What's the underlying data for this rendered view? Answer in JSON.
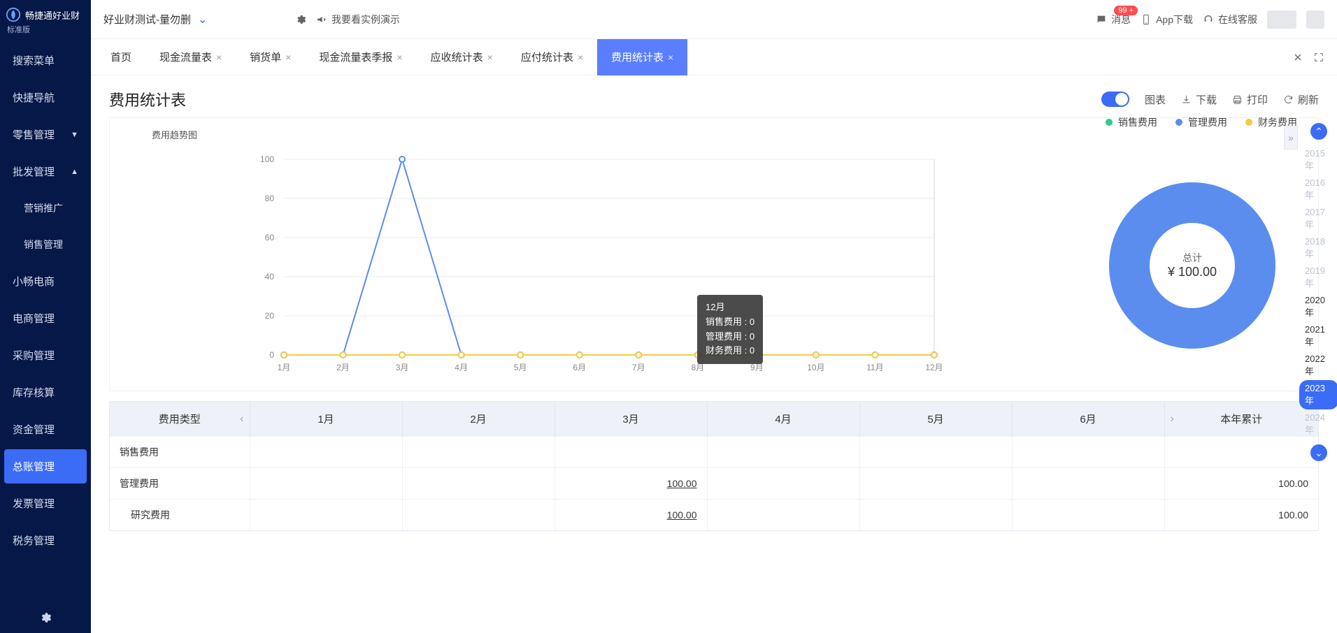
{
  "brand": {
    "name": "畅捷通好业财",
    "edition": "标准版"
  },
  "sidebar": {
    "items": [
      {
        "label": "搜索菜单"
      },
      {
        "label": "快捷导航"
      },
      {
        "label": "零售管理",
        "caret": "▼"
      },
      {
        "label": "批发管理",
        "caret": "▲"
      },
      {
        "label": "营销推广",
        "sub": true
      },
      {
        "label": "销售管理",
        "sub": true
      },
      {
        "label": "小畅电商"
      },
      {
        "label": "电商管理"
      },
      {
        "label": "采购管理"
      },
      {
        "label": "库存核算"
      },
      {
        "label": "资金管理"
      },
      {
        "label": "总账管理",
        "active": true
      },
      {
        "label": "发票管理"
      },
      {
        "label": "税务管理"
      }
    ]
  },
  "topbar": {
    "org": "好业财测试-量勿删",
    "demo": "我要看实例演示",
    "msg": "消息",
    "msg_badge": "99 +",
    "app": "App下载",
    "service": "在线客服"
  },
  "tabs": [
    {
      "label": "首页",
      "closable": false
    },
    {
      "label": "现金流量表",
      "closable": true
    },
    {
      "label": "销货单",
      "closable": true
    },
    {
      "label": "现金流量表季报",
      "closable": true
    },
    {
      "label": "应收统计表",
      "closable": true
    },
    {
      "label": "应付统计表",
      "closable": true
    },
    {
      "label": "费用统计表",
      "closable": true,
      "active": true
    }
  ],
  "page": {
    "title": "费用统计表",
    "actions": {
      "chart": "图表",
      "download": "下载",
      "print": "打印",
      "refresh": "刷新"
    }
  },
  "chart": {
    "title": "费用趋势图",
    "type": "line",
    "x_labels": [
      "1月",
      "2月",
      "3月",
      "4月",
      "5月",
      "6月",
      "7月",
      "8月",
      "9月",
      "10月",
      "11月",
      "12月"
    ],
    "y_ticks": [
      0,
      20,
      40,
      60,
      80,
      100
    ],
    "ylim": [
      0,
      100
    ],
    "series": [
      {
        "name": "销售费用",
        "color": "#2ecb8b",
        "values": [
          0,
          0,
          0,
          0,
          0,
          0,
          0,
          0,
          0,
          0,
          0,
          0
        ]
      },
      {
        "name": "管理费用",
        "color": "#5a8dee",
        "values": [
          0,
          0,
          100,
          0,
          0,
          0,
          0,
          0,
          0,
          0,
          0,
          0
        ]
      },
      {
        "name": "财务费用",
        "color": "#f7c948",
        "values": [
          0,
          0,
          0,
          0,
          0,
          0,
          0,
          0,
          0,
          0,
          0,
          0
        ]
      }
    ],
    "grid_color": "#e8ebf2",
    "axis_color": "#cfd5e2",
    "label_fontsize": 12,
    "marker_radius": 4,
    "tooltip": {
      "month": "12月",
      "rows": [
        "销售费用 : 0",
        "管理费用 : 0",
        "财务费用 : 0"
      ],
      "x_index": 11
    }
  },
  "donut": {
    "type": "donut",
    "center_label": "总计",
    "center_value": "¥ 100.00",
    "color": "#5a8dee",
    "inner_ratio": 0.55
  },
  "years": {
    "list": [
      "2015年",
      "2016年",
      "2017年",
      "2018年",
      "2019年",
      "2020年",
      "2021年",
      "2022年",
      "2023年",
      "2024年"
    ],
    "current": "2023年",
    "near": [
      "2020年",
      "2021年",
      "2022年"
    ]
  },
  "table": {
    "first_col": "费用类型",
    "months": [
      "1月",
      "2月",
      "3月",
      "4月",
      "5月",
      "6月"
    ],
    "total_col": "本年累计",
    "rows": [
      {
        "name": "销售费用",
        "cells": [
          "",
          "",
          "",
          "",
          "",
          ""
        ],
        "total": ""
      },
      {
        "name": "管理费用",
        "cells": [
          "",
          "",
          "100.00",
          "",
          "",
          ""
        ],
        "total": "100.00",
        "underline_idx": 2
      },
      {
        "name": "研究费用",
        "cells": [
          "",
          "",
          "100.00",
          "",
          "",
          ""
        ],
        "total": "100.00",
        "underline_idx": 2,
        "indent": true
      }
    ]
  }
}
